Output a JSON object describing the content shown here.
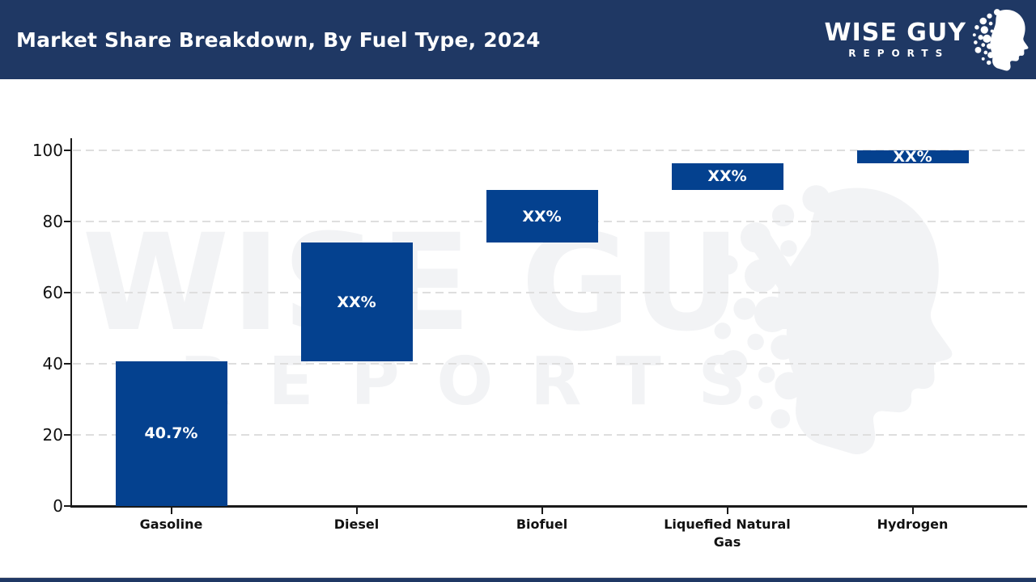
{
  "header": {
    "title": "Market Share Breakdown, By Fuel Type, 2024",
    "logo": {
      "line1": "WISE GUY",
      "line2": "REPORTS"
    }
  },
  "watermark": {
    "line1": "WISE GUY",
    "line2": "REPORTS"
  },
  "colors": {
    "header_bg": "#1f3864",
    "bar_blue": "#04418f",
    "watermark_gray": "#f2f3f5",
    "gridline_gray": "#dedede",
    "axis_black": "#1a1a1a",
    "title_text": "#ffffff"
  },
  "chart_data": {
    "type": "bar",
    "subtype": "waterfall",
    "title": "Market Share Breakdown, By Fuel Type, 2024",
    "xlabel": "",
    "ylabel": "",
    "categories": [
      "Gasoline",
      "Diesel",
      "Biofuel",
      "Liquefied Natural Gas",
      "Hydrogen"
    ],
    "bars": [
      {
        "category": "Gasoline",
        "label": "40.7%",
        "start": 0,
        "end": 40.7
      },
      {
        "category": "Diesel",
        "label": "XX%",
        "start": 40.7,
        "end": 74.0
      },
      {
        "category": "Biofuel",
        "label": "XX%",
        "start": 74.0,
        "end": 88.9
      },
      {
        "category": "Liquefied Natural Gas",
        "label": "XX%",
        "start": 88.9,
        "end": 96.4
      },
      {
        "category": "Hydrogen",
        "label": "XX%",
        "start": 96.4,
        "end": 100.0
      }
    ],
    "yticks": [
      0,
      20,
      40,
      60,
      80,
      100
    ],
    "ylim": [
      0,
      105
    ],
    "grid": "horizontal-dashed",
    "legend": "none"
  }
}
